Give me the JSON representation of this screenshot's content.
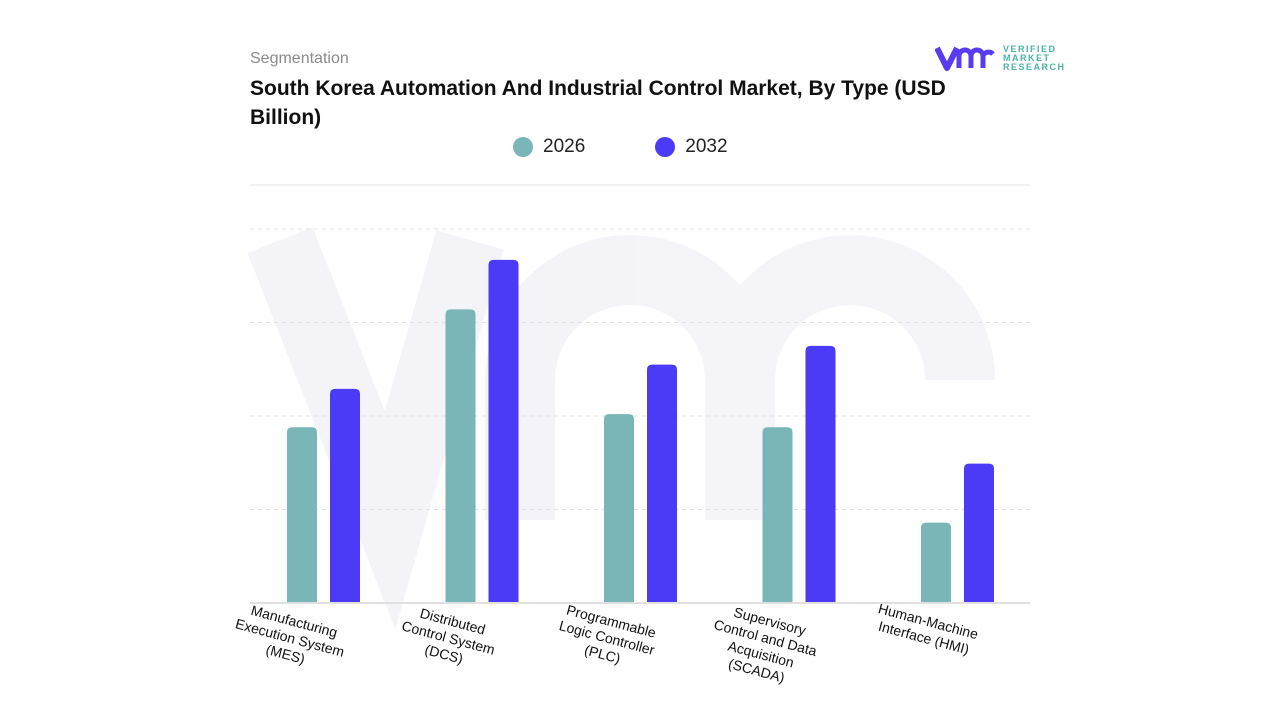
{
  "header": {
    "segment_label": "Segmentation",
    "title": "South Korea Automation And Industrial Control Market, By Type (USD Billion)"
  },
  "logo": {
    "line1": "VERIFIED",
    "line2": "MARKET",
    "line3": "RESEARCH"
  },
  "colors": {
    "series_2026": "#7ab5b8",
    "series_2032": "#4b3af6",
    "grid": "#dddddd"
  },
  "chart_data": {
    "type": "bar",
    "title": "South Korea Automation And Industrial Control Market, By Type (USD Billion)",
    "categories": [
      "Manufacturing Execution System (MES)",
      "Distributed Control System (DCS)",
      "Programmable Logic Controller (PLC)",
      "Supervisory Control and Data Acquisition (SCADA)",
      "Human-Machine Interface (HMI)"
    ],
    "category_lines": [
      [
        "Manufacturing",
        "Execution System",
        "(MES)"
      ],
      [
        "Distributed",
        "Control System",
        "(DCS)"
      ],
      [
        "Programmable",
        "Logic Controller",
        "(PLC)"
      ],
      [
        "Supervisory",
        "Control and Data",
        "Acquisition",
        "(SCADA)"
      ],
      [
        "Human-Machine",
        "Interface (HMI)"
      ]
    ],
    "series": [
      {
        "name": "2026",
        "values": [
          1.88,
          3.14,
          2.02,
          1.88,
          0.86
        ]
      },
      {
        "name": "2032",
        "values": [
          2.29,
          3.67,
          2.55,
          2.75,
          1.49
        ]
      }
    ],
    "ylim": [
      0,
      4
    ],
    "grid": true,
    "legend": "top-center",
    "xlabel": "",
    "ylabel": ""
  }
}
